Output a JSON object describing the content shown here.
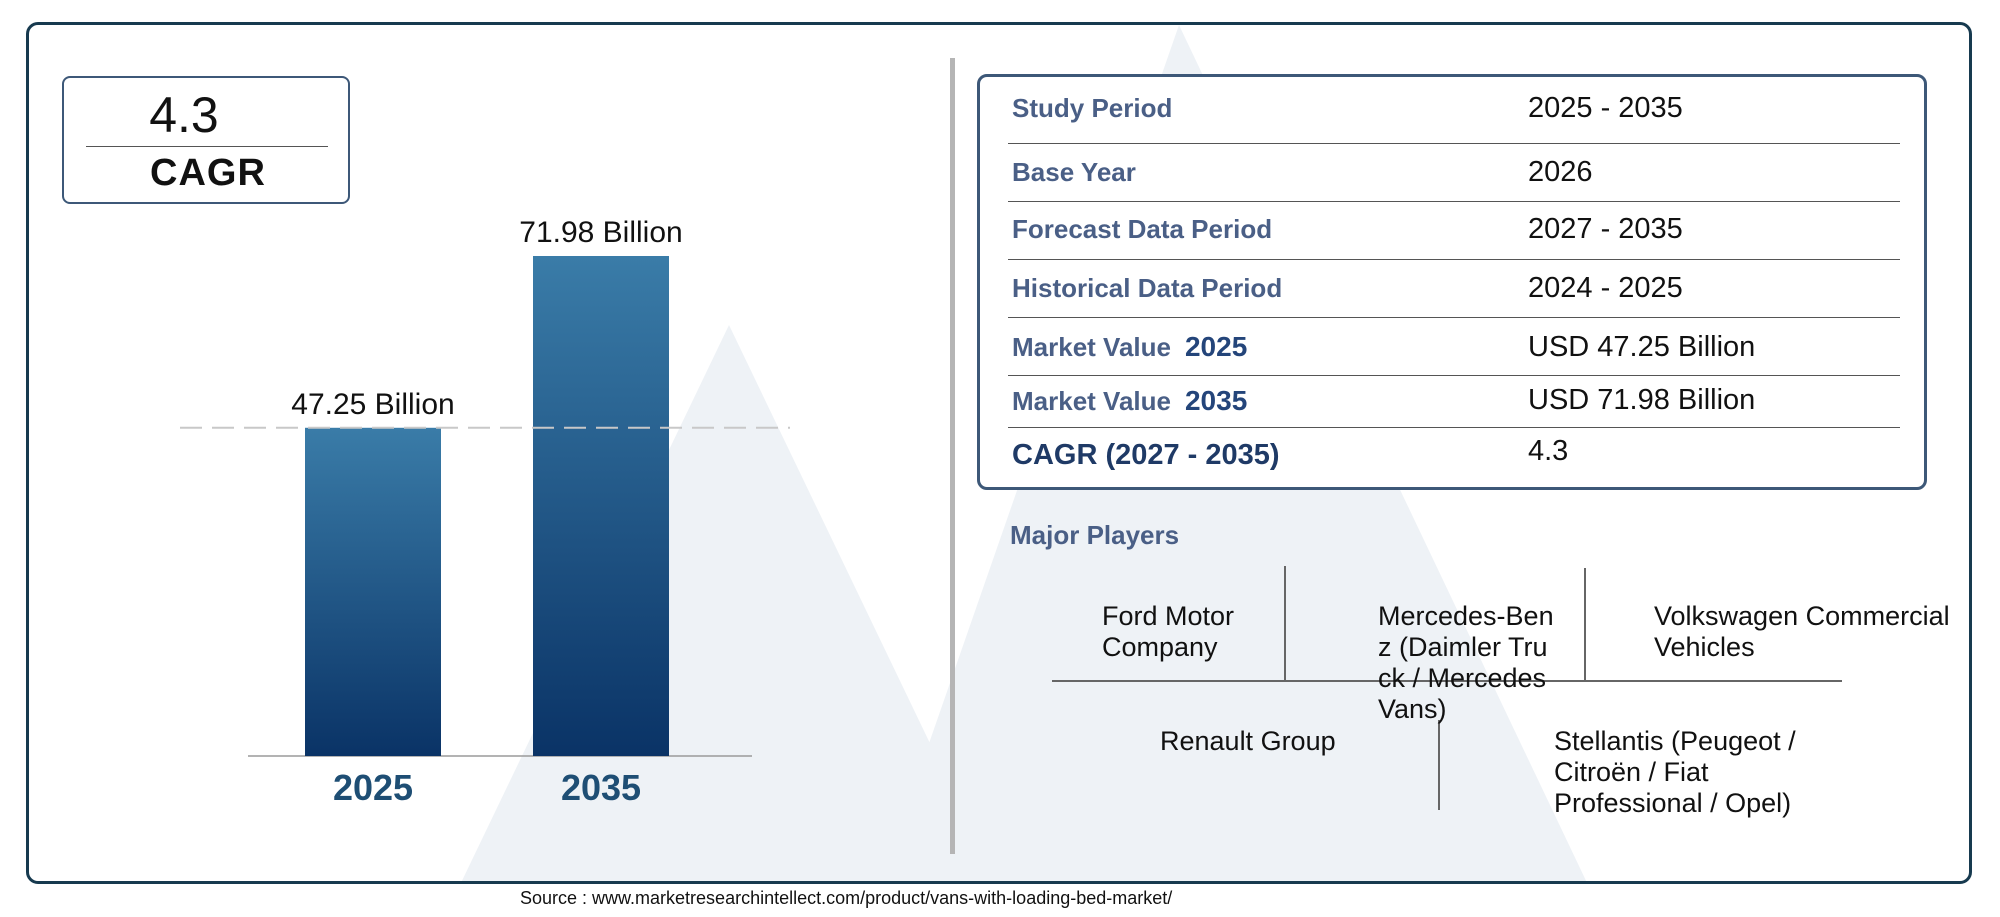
{
  "chart_data": {
    "type": "bar",
    "categories": [
      "2025",
      "2035"
    ],
    "values": [
      47.25,
      71.98
    ],
    "value_labels": [
      "47.25 Billion",
      "71.98 Billion"
    ],
    "title": "",
    "xlabel": "",
    "ylabel": "",
    "ylim": [
      0,
      80
    ],
    "grid": false,
    "reference_line_at": 47.25
  },
  "cagr_box": {
    "value": "4.3",
    "label": "CAGR"
  },
  "summary_table": [
    {
      "label": "Study Period",
      "year": "",
      "value": "2025 - 2035"
    },
    {
      "label": "Base Year",
      "year": "",
      "value": "2026"
    },
    {
      "label": "Forecast Data Period",
      "year": "",
      "value": "2027 - 2035"
    },
    {
      "label": "Historical Data Period",
      "year": "",
      "value": "2024 - 2025"
    },
    {
      "label": "Market Value",
      "year": "2025",
      "value": "USD 47.25 Billion"
    },
    {
      "label": "Market Value",
      "year": "2035",
      "value": "USD 71.98 Billion"
    },
    {
      "label": "CAGR (2027 - 2035)",
      "year": "",
      "value": "4.3"
    }
  ],
  "major_players": {
    "title": "Major Players",
    "items": [
      "Ford Motor Company",
      "Mercedes-Benz (Daimler Truck / Mercedes Vans)",
      "Volkswagen Commercial Vehicles",
      "Renault Group",
      "Stellantis (Peugeot / Citroën / Fiat Professional / Opel)"
    ]
  },
  "source": "Source : www.marketresearchintellect.com/product/vans-with-loading-bed-market/",
  "colors": {
    "bar_top": "#3a7ca8",
    "bar_bottom": "#0a3366",
    "frame": "#173a4f",
    "label_blue": "#4a5f86",
    "category_label": "#1e4e74",
    "watermark": "#eef2f6"
  }
}
